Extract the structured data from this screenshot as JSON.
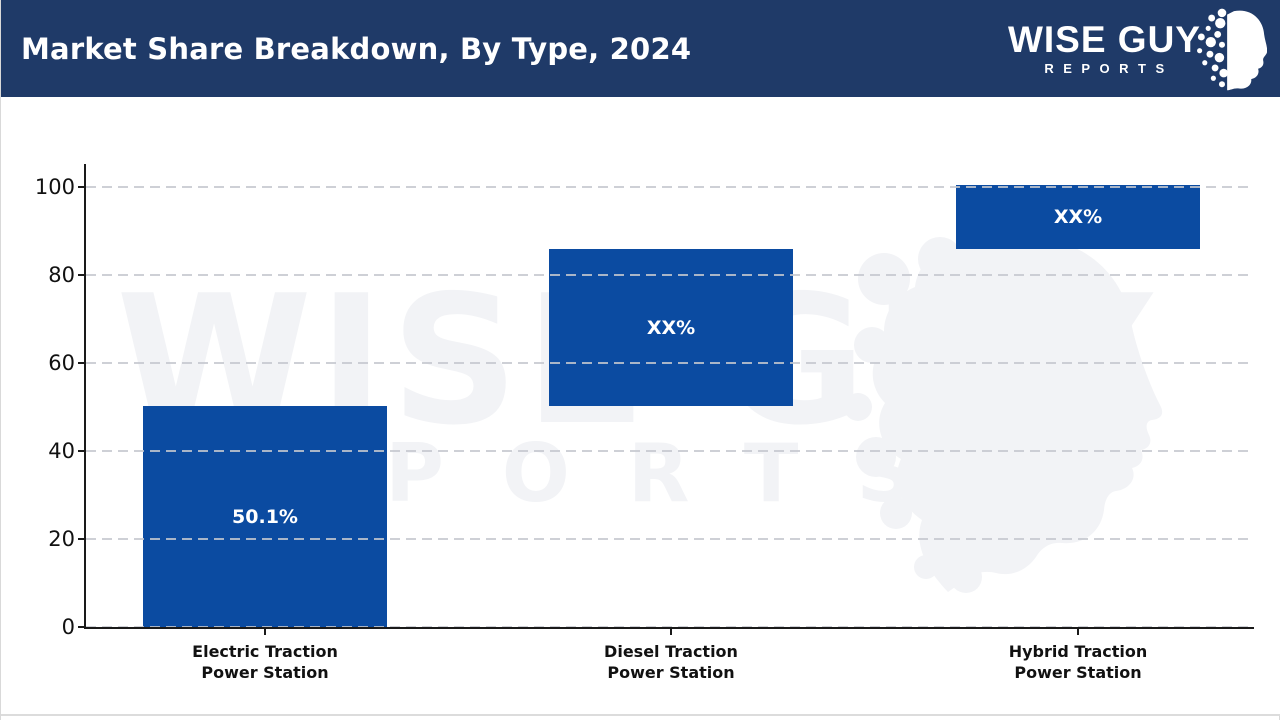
{
  "header": {
    "title": "Market Share Breakdown, By Type, 2024",
    "bg_color": "#1f3a68",
    "logo": {
      "wordmark": "WISE GUY",
      "subtext": "REPORTS"
    }
  },
  "watermark": {
    "line1": "WISE GUY",
    "line2": "REPORTS"
  },
  "chart_data": {
    "type": "bar",
    "subtype": "waterfall-segments",
    "title": "Market Share Breakdown, By Type, 2024",
    "categories": [
      "Electric Traction\nPower Station",
      "Diesel Traction\nPower Station",
      "Hybrid Traction\nPower Station"
    ],
    "segments": [
      {
        "category": "Electric Traction Power Station",
        "label": "50.1%",
        "from": 0,
        "to": 50.1
      },
      {
        "category": "Diesel Traction Power Station",
        "label": "XX%",
        "from": 50.1,
        "to": 85.9
      },
      {
        "category": "Hybrid Traction Power Station",
        "label": "XX%",
        "from": 85.9,
        "to": 100.4
      }
    ],
    "bar_color": "#0b4ba1",
    "bar_label_color": "#ffffff",
    "yticks": [
      0,
      20,
      40,
      60,
      80,
      100
    ],
    "ylim": [
      0,
      104.5
    ],
    "xlabel": "",
    "ylabel": "",
    "grid": "horizontal-dashed",
    "legend": "none"
  }
}
